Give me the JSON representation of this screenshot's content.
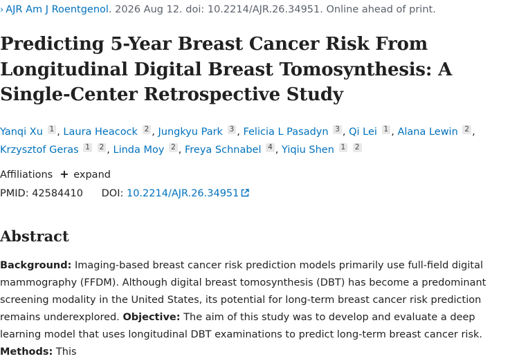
{
  "citation": {
    "chevron": "›",
    "journal_link": "AJR Am J Roentgenol",
    "details": ". 2026 Aug 12. doi: 10.2214/AJR.26.34951. Online ahead of print."
  },
  "title": "Predicting 5-Year Breast Cancer Risk From Longitudinal Digital Breast Tomosynthesis: A Single-Center Retrospective Study",
  "authors": [
    {
      "name": "Yanqi Xu",
      "affs": [
        "1"
      ]
    },
    {
      "name": "Laura Heacock",
      "affs": [
        "2"
      ]
    },
    {
      "name": "Jungkyu Park",
      "affs": [
        "3"
      ]
    },
    {
      "name": "Felicia L Pasadyn",
      "affs": [
        "3"
      ]
    },
    {
      "name": "Qi Lei",
      "affs": [
        "1"
      ]
    },
    {
      "name": "Alana Lewin",
      "affs": [
        "2"
      ]
    },
    {
      "name": "Krzysztof Geras",
      "affs": [
        "1",
        "2"
      ]
    },
    {
      "name": "Linda Moy",
      "affs": [
        "2"
      ]
    },
    {
      "name": "Freya Schnabel",
      "affs": [
        "4"
      ]
    },
    {
      "name": "Yiqiu Shen",
      "affs": [
        "1",
        "2"
      ]
    }
  ],
  "affiliations": {
    "label": "Affiliations",
    "expand_label": "expand"
  },
  "identifiers": {
    "pmid_label": "PMID:",
    "pmid": "42584410",
    "doi_label": "DOI:",
    "doi": "10.2214/AJR.26.34951"
  },
  "abstract": {
    "heading": "Abstract",
    "background_label": "Background:",
    "background_text": " Imaging-based breast cancer risk prediction models primarily use full-field digital mammography (FFDM). Although digital breast tomosynthesis (DBT) has become a predominant screening modality in the United States, its potential for long-term breast cancer risk prediction remains underexplored. ",
    "objective_label": "Objective:",
    "objective_text": " The aim of this study was to develop and evaluate a deep learning model that uses longitudinal DBT examinations to predict long-term breast cancer risk. ",
    "methods_label": "Methods:",
    "methods_text": " This"
  },
  "colors": {
    "link": "#0071bc",
    "text": "#212121",
    "muted": "#5b616b",
    "badge_bg": "#e8e8e8"
  },
  "icons": {
    "external_link": "external-link-icon",
    "expand": "plus-icon"
  }
}
